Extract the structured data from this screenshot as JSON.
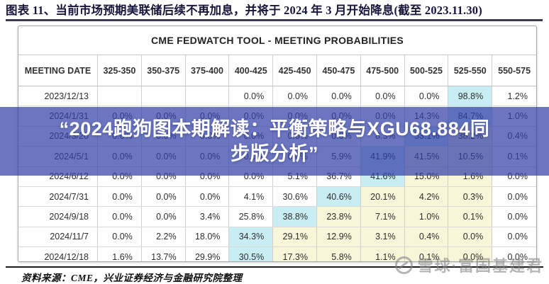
{
  "figure": {
    "title": "图表 11、当前市场预期美联储后续不再加息，并将于 2024 年 3 月开始降息(截至 2023.11.30)"
  },
  "chart_data": {
    "type": "table",
    "title": "CME FEDWATCH TOOL - MEETING PROBABILITIES",
    "columns": [
      "MEETING DATE",
      "325-350",
      "350-375",
      "375-400",
      "400-425",
      "425-450",
      "450-475",
      "475-500",
      "500-525",
      "525-550",
      "550-575"
    ],
    "rows": [
      {
        "date": "2023/12/13",
        "values": [
          "",
          "",
          "",
          "0.0%",
          "0.0%",
          "0.0%",
          "0.0%",
          "0.0%",
          "98.8%",
          "1.2%"
        ],
        "max_col": 8,
        "yellow_cols": []
      },
      {
        "date": "2024/1/31",
        "values": [
          "0.0%",
          "0.0%",
          "0.0%",
          "0.0%",
          "0.0%",
          "0.0%",
          "0.0%",
          "14.3%",
          "84.7%",
          "1.0%"
        ],
        "max_col": 8,
        "yellow_cols": []
      },
      {
        "date": "2024/3/20",
        "values": [
          "0.0%",
          "0.0%",
          "0.0%",
          "0.0%",
          "0.0%",
          "0.0%",
          "8.3%",
          "53.1%",
          "38.2%",
          "0.4%"
        ],
        "max_col": 7,
        "yellow_cols": [
          8
        ]
      },
      {
        "date": "2024/5/1",
        "values": [
          "0.0%",
          "0.0%",
          "0.0%",
          "0.0%",
          "0.0%",
          "5.9%",
          "41.9%",
          "41.5%",
          "10.5%",
          "0.1%"
        ],
        "max_col": 6,
        "yellow_cols": [
          7,
          8
        ]
      },
      {
        "date": "2024/6/12",
        "values": [
          "0.0%",
          "0.0%",
          "0.0%",
          "0.0%",
          "5.1%",
          "36.7%",
          "41.6%",
          "15.0%",
          "1.6%",
          "0.0%"
        ],
        "max_col": 6,
        "yellow_cols": [
          7,
          8
        ]
      },
      {
        "date": "2024/7/31",
        "values": [
          "0.0%",
          "0.0%",
          "0.0%",
          "4.1%",
          "30.6%",
          "40.6%",
          "20.1%",
          "4.2%",
          "0.3%",
          "0.0%"
        ],
        "max_col": 5,
        "yellow_cols": [
          6,
          7,
          8
        ]
      },
      {
        "date": "2024/9/18",
        "values": [
          "0.0%",
          "0.0%",
          "3.4%",
          "25.8%",
          "38.8%",
          "23.8%",
          "7.1%",
          "1.0%",
          "0.1%",
          "0.0%"
        ],
        "max_col": 4,
        "yellow_cols": [
          5,
          6,
          7,
          8
        ]
      },
      {
        "date": "2024/11/7",
        "values": [
          "0.0%",
          "2.2%",
          "18.0%",
          "34.3%",
          "29.1%",
          "12.9%",
          "3.1%",
          "0.4%",
          "0.0%",
          "0.0%"
        ],
        "max_col": 3,
        "yellow_cols": [
          4,
          5,
          6,
          7,
          8
        ]
      },
      {
        "date": "2024/12/18",
        "values": [
          "1.6%",
          "13.7%",
          "29.9%",
          "30.5%",
          "17.3%",
          "5.8%",
          "1.1%",
          "0.1%",
          "0.0%",
          "0.0%"
        ],
        "max_col": 3,
        "yellow_cols": [
          4,
          5,
          6,
          7,
          8
        ]
      }
    ]
  },
  "overlay": {
    "full_text": "“2024跑狗图本期解读：平衡策略与XGU68.884同步版分析”",
    "line1": "“2024跑狗图本期解读：平衡策略与XGU68.884同",
    "line2": "步版分析”"
  },
  "footer": {
    "source": "资料来源：CME，兴业证券经济与金融研究院整理"
  },
  "watermark": {
    "text": "雪球·富国基建君"
  },
  "colors": {
    "title_navy": "#16163c",
    "band_overlay": "rgba(50,64,168,0.72)",
    "highlight_cyan": "#c8eef4",
    "highlight_yellow": "#f8f6d8"
  }
}
